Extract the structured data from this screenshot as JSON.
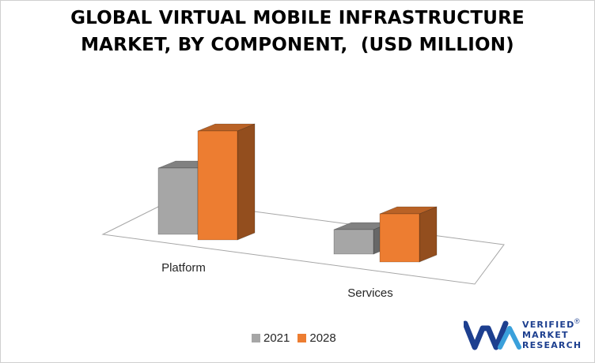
{
  "title_line1": "GLOBAL VIRTUAL MOBILE INFRASTRUCTURE",
  "title_line2": "MARKET, BY COMPONENT,  (USD MILLION)",
  "chart_data": {
    "type": "bar",
    "title": "GLOBAL VIRTUAL MOBILE INFRASTRUCTURE MARKET, BY COMPONENT,  (USD MILLION)",
    "categories": [
      "Platform",
      "Services"
    ],
    "series": [
      {
        "name": "2021",
        "values": [
          84,
          31
        ],
        "color": "#a6a6a6"
      },
      {
        "name": "2028",
        "values": [
          138,
          61
        ],
        "color": "#ed7d31"
      }
    ],
    "legend_position": "bottom",
    "grid": false,
    "style": "3d-clustered-column"
  },
  "logo": {
    "line1": "VERIFIED",
    "line2": "MARKET",
    "line3": "RESEARCH",
    "registered": "®",
    "color": "#1d3f8f"
  }
}
